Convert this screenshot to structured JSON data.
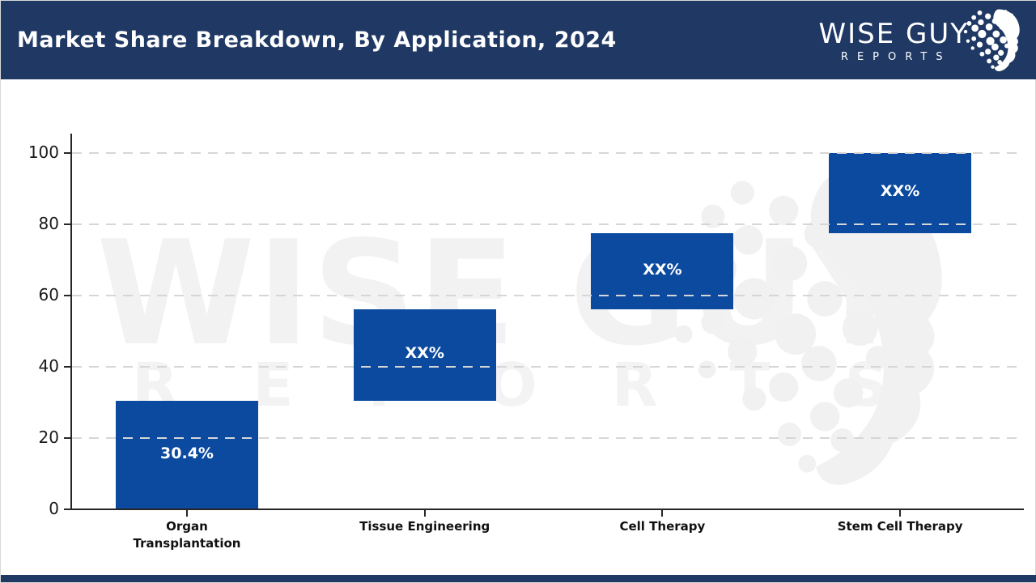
{
  "header": {
    "title": "Market Share Breakdown, By Application, 2024",
    "logo_line1": "WISE GUY",
    "logo_line2": "REPORTS"
  },
  "watermark": {
    "line1": "WISE GUY",
    "line2": "REPORTS"
  },
  "chart_data": {
    "type": "bar",
    "variant": "waterfall",
    "title": "Market Share Breakdown, By Application, 2024",
    "categories": [
      "Organ Transplantation",
      "Tissue Engineering",
      "Cell Therapy",
      "Stem Cell Therapy"
    ],
    "segments": [
      {
        "category": "Organ Transplantation",
        "start": 0,
        "end": 30.4,
        "label": "30.4%"
      },
      {
        "category": "Tissue Engineering",
        "start": 30.4,
        "end": 56,
        "label": "XX%"
      },
      {
        "category": "Cell Therapy",
        "start": 56,
        "end": 77.5,
        "label": "XX%"
      },
      {
        "category": "Stem Cell Therapy",
        "start": 77.5,
        "end": 100,
        "label": "XX%"
      }
    ],
    "ylim": [
      0,
      100
    ],
    "yticks": [
      0,
      20,
      40,
      60,
      80,
      100
    ],
    "xlabel": "",
    "ylabel": "",
    "legend": "none",
    "grid": "dashed-horizontal",
    "colors": {
      "bar": "#0B4A9F",
      "header_bg": "#1F3864",
      "grid": "#D6D6D6",
      "axis": "#262626",
      "bar_label_text": "#FFFFFF",
      "category_text": "#111111",
      "watermark": "#F2F2F2"
    }
  }
}
